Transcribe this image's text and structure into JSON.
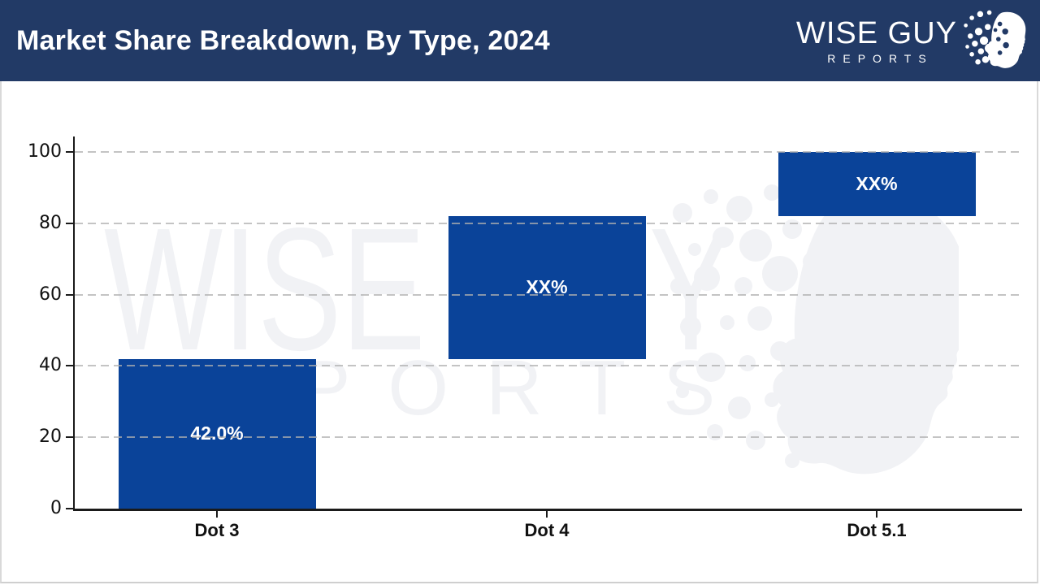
{
  "header": {
    "title": "Market Share Breakdown, By Type, 2024",
    "logo": {
      "line1": "WISE GUY",
      "line2": "REPORTS"
    }
  },
  "watermark": {
    "line1": "WISE GUY",
    "line2": "REPORTS"
  },
  "chart_data": {
    "type": "bar",
    "subtype": "waterfall-segments",
    "title": "Market Share Breakdown, By Type, 2024",
    "categories": [
      "Dot 3",
      "Dot 4",
      "Dot 5.1"
    ],
    "segments": [
      {
        "category": "Dot 3",
        "start": 0,
        "end": 42,
        "label": "42.0%"
      },
      {
        "category": "Dot 4",
        "start": 42,
        "end": 82,
        "label": "XX%"
      },
      {
        "category": "Dot 5.1",
        "start": 82,
        "end": 100,
        "label": "XX%"
      }
    ],
    "ylim": [
      0,
      100
    ],
    "yticks": [
      0,
      20,
      40,
      60,
      80,
      100
    ],
    "xlabel": "",
    "ylabel": "",
    "grid": "horizontal dashed, drawn over bars",
    "legend": "none",
    "bar_color": "#0a4399",
    "bar_label_color": "#ffffff"
  },
  "colors": {
    "header_bg": "#223a66",
    "bar": "#0a4399",
    "axis": "#1a1a1a",
    "grid": "#b0b0b0",
    "watermark": "#f1f2f5",
    "border": "#d9d9d9"
  }
}
